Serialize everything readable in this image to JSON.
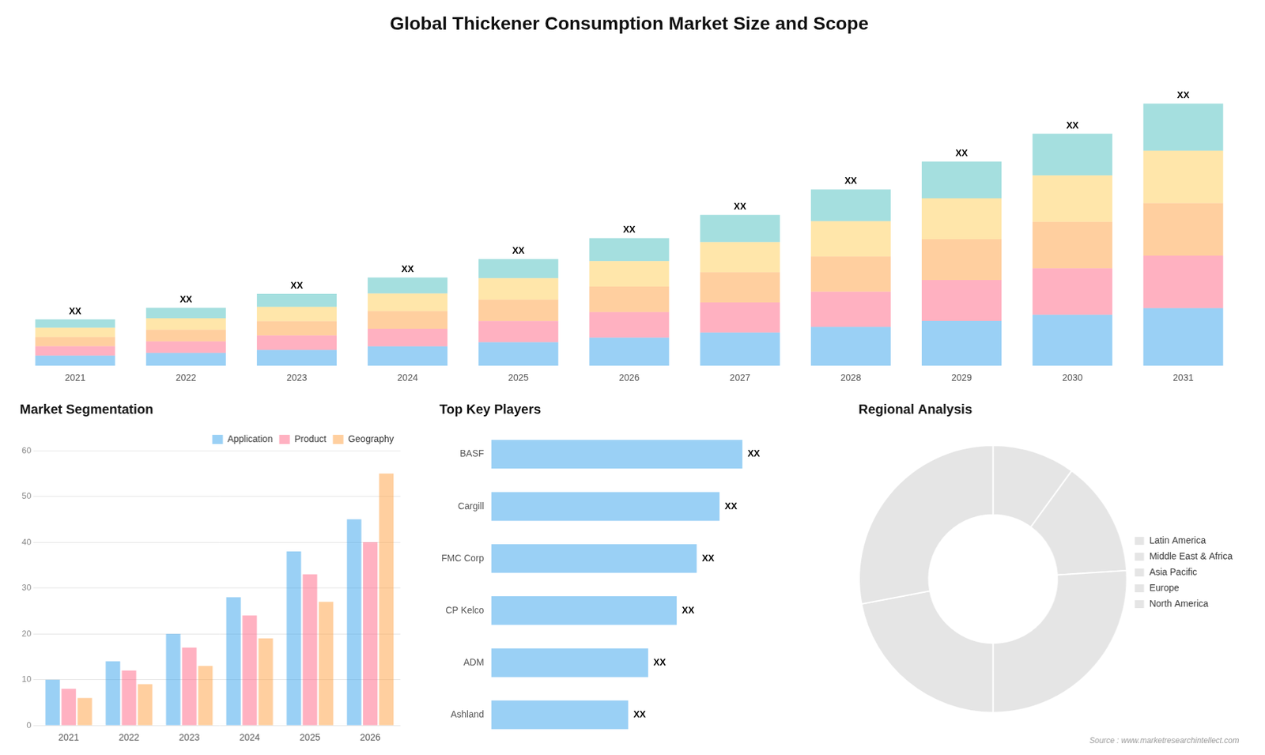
{
  "chart_data": [
    {
      "type": "bar",
      "title": "Global Thickener Consumption Market Size and Scope",
      "categories": [
        "2021",
        "2022",
        "2023",
        "2024",
        "2025",
        "2026",
        "2027",
        "2028",
        "2029",
        "2030",
        "2031"
      ],
      "stacked": true,
      "series": [
        {
          "values": [
            0.22,
            0.275,
            0.341,
            0.418,
            0.506,
            0.605,
            0.715,
            0.836,
            0.968,
            1.1,
            1.243
          ]
        },
        {
          "values": [
            0.2,
            0.25,
            0.31,
            0.38,
            0.46,
            0.55,
            0.65,
            0.76,
            0.88,
            1.0,
            1.13
          ]
        },
        {
          "values": [
            0.2,
            0.25,
            0.31,
            0.38,
            0.46,
            0.55,
            0.65,
            0.76,
            0.88,
            1.0,
            1.13
          ]
        },
        {
          "values": [
            0.2,
            0.25,
            0.31,
            0.38,
            0.46,
            0.55,
            0.65,
            0.76,
            0.88,
            1.0,
            1.13
          ]
        },
        {
          "values": [
            0.18,
            0.225,
            0.279,
            0.342,
            0.414,
            0.495,
            0.585,
            0.684,
            0.792,
            0.9,
            1.017
          ],
          "value_labels": [
            "XX",
            "XX",
            "XX",
            "XX",
            "XX",
            "XX",
            "XX",
            "XX",
            "XX",
            "XX",
            "XX"
          ]
        }
      ],
      "ylim": [
        0,
        6.893
      ],
      "tick_labels": "x",
      "grid": false
    },
    {
      "type": "bar",
      "title": "Market Segmentation",
      "categories": [
        "2021",
        "2022",
        "2023",
        "2024",
        "2025",
        "2026"
      ],
      "series": [
        {
          "name": "Application",
          "values": [
            10,
            14,
            20,
            28,
            38,
            45
          ]
        },
        {
          "name": "Product",
          "values": [
            8,
            12,
            17,
            24,
            33,
            40
          ]
        },
        {
          "name": "Geography",
          "values": [
            6,
            9,
            13,
            19,
            27,
            55
          ]
        }
      ],
      "ylim": [
        0,
        60
      ],
      "yticks": [
        0,
        10,
        20,
        30,
        40,
        50,
        60
      ],
      "grid": true,
      "legend": "upper right"
    },
    {
      "type": "bar",
      "title": "Top Key Players",
      "orientation": "horizontal",
      "categories": [
        "BASF",
        "Cargill",
        "FMC Corp",
        "CP Kelco",
        "ADM",
        "Ashland"
      ],
      "values": [
        0.88,
        0.8,
        0.72,
        0.65,
        0.55,
        0.48
      ],
      "value_labels": [
        "XX",
        "XX",
        "XX",
        "XX",
        "XX",
        "XX"
      ],
      "xlim": [
        0,
        1.15
      ],
      "tick_labels": "y",
      "grid": false
    },
    {
      "type": "doughnut",
      "title": "Regional Analysis",
      "categories": [
        "Latin America",
        "Middle East &\nAfrica",
        "Asia Pacific",
        "Europe",
        "North America"
      ],
      "values": [
        10,
        14,
        26,
        22,
        28
      ],
      "legend": "right",
      "annotations": [
        "Source : www.marketresearchintellect.com"
      ]
    }
  ]
}
